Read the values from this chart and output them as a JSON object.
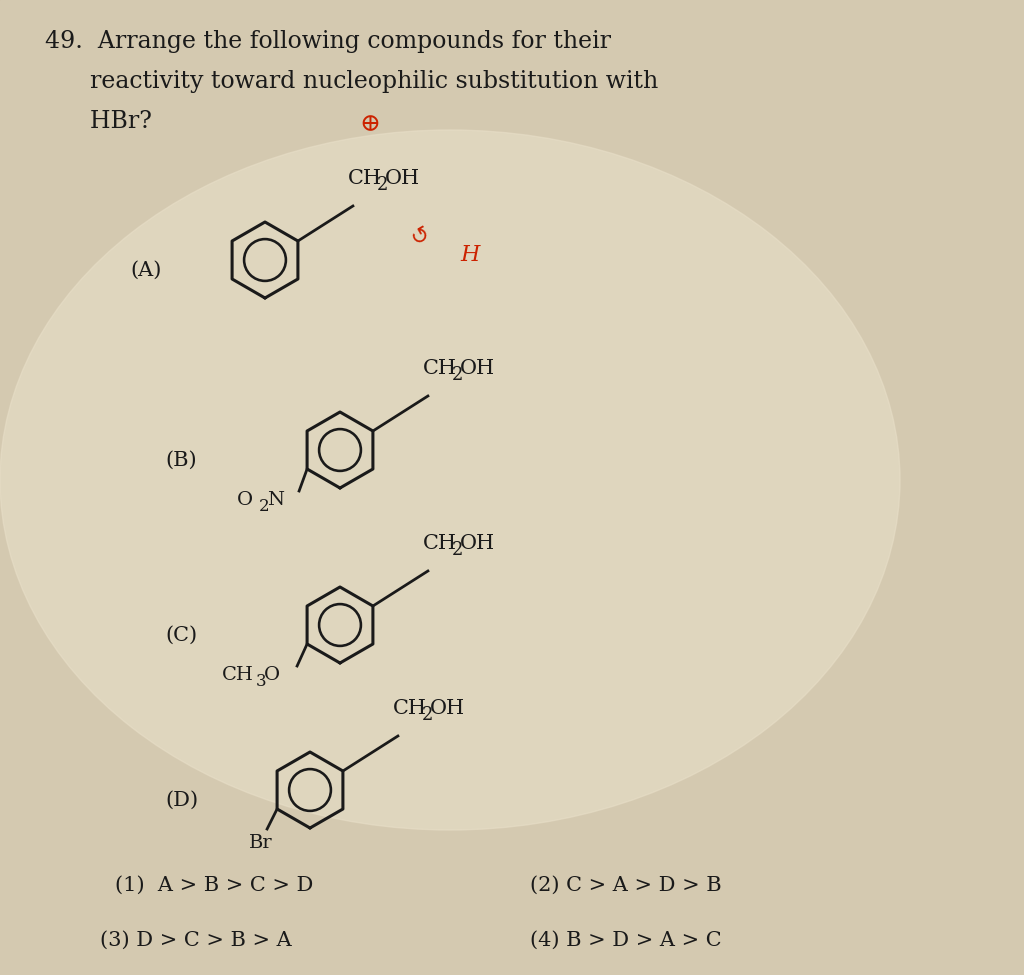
{
  "background_color": "#b8a888",
  "text_color": "#1a1a1a",
  "ring_color": "#1a1a1a",
  "red_color": "#cc2200",
  "title_line1": "49.  Arrange the following compounds for their",
  "title_line2": "      reactivity toward nucleophilic substitution with",
  "title_line3": "      HBr?",
  "label_A": "(A)",
  "label_B": "(B)",
  "label_C": "(C)",
  "label_D": "(D)",
  "sub_B": "O",
  "sub_B2": "2",
  "sub_B3": "N",
  "sub_C": "CH",
  "sub_C2": "3",
  "sub_C3": "O",
  "sub_D": "Br",
  "ch2oh": "CH",
  "ch2oh_2": "2",
  "ch2oh_3": "OH",
  "options": [
    "(1)  A > B > C > D",
    "(2) C > A > D > B",
    "(3) D > C > B > A",
    "(4) B > D > A > C"
  ],
  "ring_r": 0.38,
  "ring_lw": 2.2,
  "title_fontsize": 17,
  "label_fontsize": 15,
  "chem_fontsize": 14,
  "option_fontsize": 15,
  "sub_fontsize": 13
}
